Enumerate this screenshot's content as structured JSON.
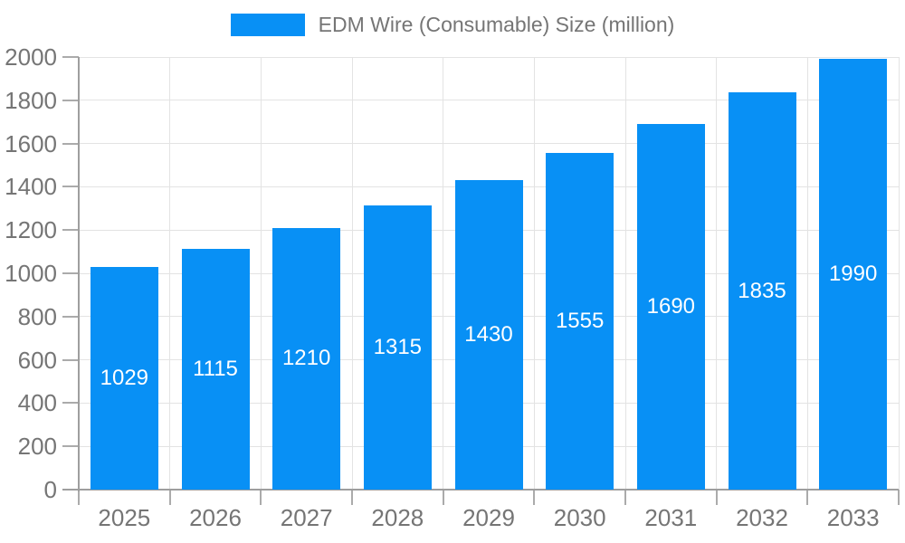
{
  "chart_data": {
    "type": "bar",
    "title": "",
    "legend": {
      "label": "EDM Wire (Consumable) Size (million)",
      "position": "top-center",
      "swatch_color": "#0890f5"
    },
    "categories": [
      "2025",
      "2026",
      "2027",
      "2028",
      "2029",
      "2030",
      "2031",
      "2032",
      "2033"
    ],
    "series": [
      {
        "name": "EDM Wire (Consumable) Size (million)",
        "values": [
          1029,
          1115,
          1210,
          1315,
          1430,
          1555,
          1690,
          1835,
          1990
        ]
      }
    ],
    "bar_labels": [
      1029,
      1115,
      1210,
      1315,
      1430,
      1555,
      1690,
      1835,
      1990
    ],
    "xlabel": "",
    "ylabel": "",
    "ylim": [
      0,
      2000
    ],
    "yticks": [
      0,
      200,
      400,
      600,
      800,
      1000,
      1200,
      1400,
      1600,
      1800,
      2000
    ],
    "grid": true,
    "colors": {
      "bar": "#0890f5",
      "bar_label_text": "#ffffff",
      "axis_text": "#757575",
      "legend_text": "#757575",
      "grid_line": "#e3e3e3",
      "axis_line": "#9e9e9e",
      "tick_mark": "#ababab",
      "background": "#ffffff"
    }
  }
}
